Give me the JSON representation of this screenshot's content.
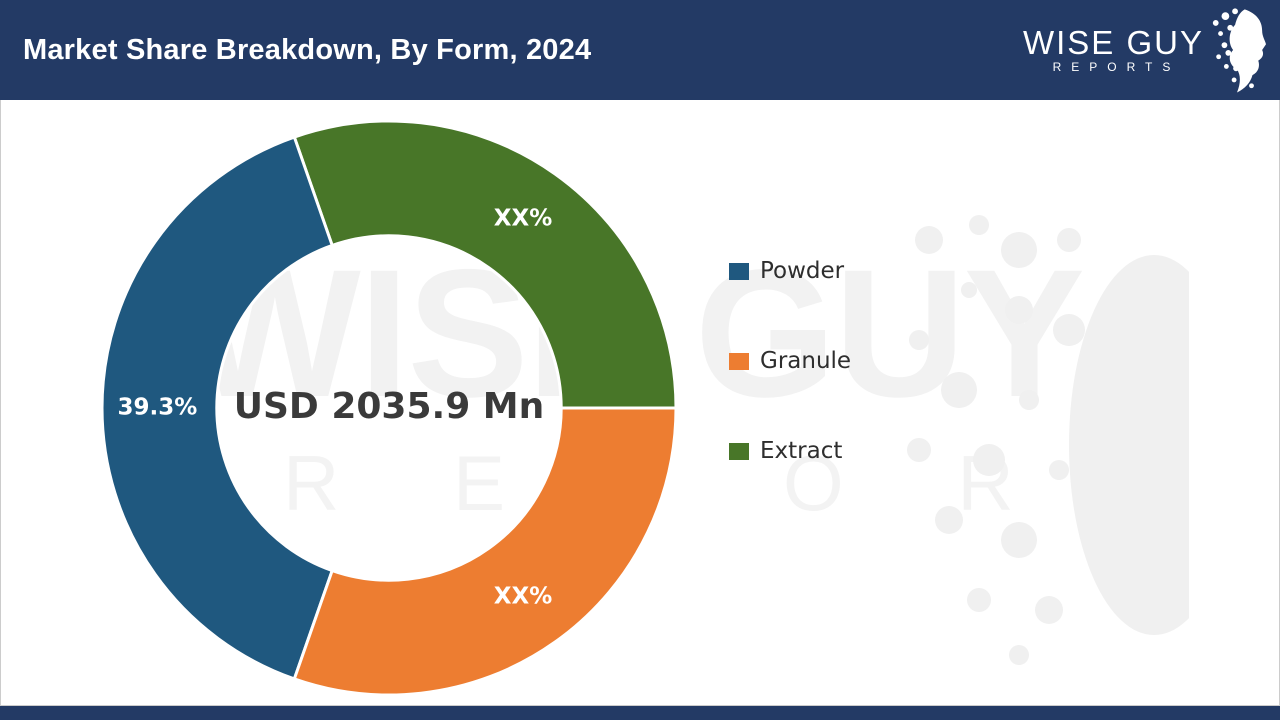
{
  "header": {
    "title": "Market Share Breakdown, By Form, 2024",
    "bg_color": "#233A65",
    "logo": {
      "line1": "WISE GUY",
      "line2": "REPORTS"
    }
  },
  "watermark": {
    "line1": "WISE GUY",
    "line2": "R E P O R T S"
  },
  "chart_data": {
    "type": "pie",
    "subtype": "donut",
    "title": "Market Share Breakdown, By Form, 2024",
    "center_label": "USD 2035.9 Mn",
    "units": "percent share",
    "start_angle_deg": 0,
    "direction": "counterclockwise",
    "donut_hole_ratio": 0.6,
    "separator_color": "#ffffff",
    "label_color": "#ffffff",
    "segments": [
      {
        "name": "Extract",
        "value": 30.35,
        "display_label": "XX%",
        "color": "#487628"
      },
      {
        "name": "Powder",
        "value": 39.3,
        "display_label": "39.3%",
        "color": "#1F587F"
      },
      {
        "name": "Granule",
        "value": 30.35,
        "display_label": "XX%",
        "color": "#ED7D31"
      }
    ],
    "legend_position": "right"
  },
  "legend": {
    "items": [
      {
        "label": "Powder",
        "color": "#1F587F"
      },
      {
        "label": "Granule",
        "color": "#ED7D31"
      },
      {
        "label": "Extract",
        "color": "#487628"
      }
    ]
  }
}
